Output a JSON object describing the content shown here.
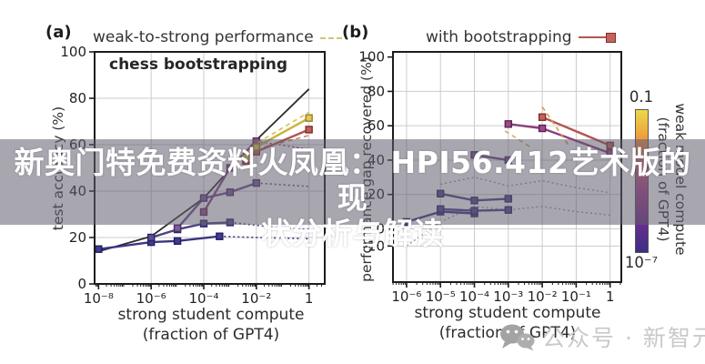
{
  "overlay": {
    "line1": "新奥门特免费资料火凤凰： HPI56.412艺术版的现",
    "line2": "状分析与解读"
  },
  "watermark": {
    "label": "公众号 · 新智元"
  },
  "colorbar": {
    "top_label": "0.1",
    "bottom_label": "10⁻⁷",
    "title_line1": "weak model compute",
    "title_line2": "(fraction of GPT4)",
    "gradient": [
      "#ecd94a",
      "#ec9c3c",
      "#d0607a",
      "#a13d8c",
      "#6a2d8f",
      "#3c2f85"
    ]
  },
  "chart_data": [
    {
      "type": "line",
      "panel_label": "(a)",
      "title": "chess bootstrapping",
      "legend_label": "weak-to-strong performance",
      "xlabel_line1": "strong student compute",
      "xlabel_line2": "(fraction of GPT4)",
      "ylabel": "test accuracy (%)",
      "xscale": "log",
      "xlim_log10": [
        -8.15,
        0.6
      ],
      "ylim": [
        0,
        100
      ],
      "xticks": [
        {
          "log10": -8,
          "label": "10⁻⁸",
          "grid": false
        },
        {
          "log10": -6,
          "label": "10⁻⁶",
          "grid": true
        },
        {
          "log10": -4,
          "label": "10⁻⁴",
          "grid": true
        },
        {
          "log10": -2,
          "label": "10⁻²",
          "grid": true
        },
        {
          "log10": 0,
          "label": "1",
          "grid": true
        }
      ],
      "yticks": [
        {
          "v": 0,
          "label": "0",
          "grid": false
        },
        {
          "v": 20,
          "label": "20",
          "grid": true
        },
        {
          "v": 40,
          "label": "40",
          "grid": true
        },
        {
          "v": 60,
          "label": "60",
          "grid": true
        },
        {
          "v": 80,
          "label": "80",
          "grid": true
        },
        {
          "v": 100,
          "label": "100",
          "grid": false
        }
      ],
      "series": [
        {
          "name": "strong ceiling",
          "color": "#2b2b2b",
          "dash": "solid",
          "width": 1.8,
          "marker": false,
          "points": [
            [
              -8,
              14
            ],
            [
              -6,
              20.5
            ],
            [
              -4,
              37
            ],
            [
              -2,
              62
            ],
            [
              0,
              84
            ]
          ]
        },
        {
          "name": "weak 1e-7 extension",
          "color": "#3b3583",
          "dash": "dotted",
          "width": 1.6,
          "marker": false,
          "points": [
            [
              -3.4,
              20.5
            ],
            [
              -2,
              20
            ],
            [
              0,
              19.5
            ]
          ]
        },
        {
          "name": "weak 1e-7 bootstrapped",
          "color": "#3b3583",
          "dash": "solid",
          "width": 2.4,
          "marker": true,
          "marker_fill": "#413b8e",
          "marker_stroke": "#221e5e",
          "points": [
            [
              -8,
              15
            ],
            [
              -6,
              18
            ],
            [
              -5,
              18.5
            ],
            [
              -3.4,
              20.5
            ]
          ]
        },
        {
          "name": "weak 1e-6 extension",
          "color": "#4d4383",
          "dash": "dotted",
          "width": 1.6,
          "marker": false,
          "points": [
            [
              -3,
              26.5
            ],
            [
              -1,
              24
            ],
            [
              0,
              23.5
            ]
          ]
        },
        {
          "name": "weak 1e-6 bootstrapped",
          "color": "#4d4383",
          "dash": "solid",
          "width": 2.4,
          "marker": true,
          "marker_fill": "#575091",
          "marker_stroke": "#2b2566",
          "points": [
            [
              -6,
              20
            ],
            [
              -5,
              23.5
            ],
            [
              -4,
              26
            ],
            [
              -3,
              26.5
            ]
          ]
        },
        {
          "name": "weak 1e-5 extension",
          "color": "#6f4f8c",
          "dash": "dotted",
          "width": 1.6,
          "marker": false,
          "points": [
            [
              -2,
              43.5
            ],
            [
              0,
              42
            ]
          ]
        },
        {
          "name": "weak 1e-5 bootstrapped",
          "color": "#6f4f8c",
          "dash": "solid",
          "width": 2.4,
          "marker": true,
          "marker_fill": "#7c5c9a",
          "marker_stroke": "#4a2f68",
          "points": [
            [
              -5,
              24
            ],
            [
              -4,
              37
            ],
            [
              -3,
              39.5
            ],
            [
              -2,
              43.5
            ]
          ]
        },
        {
          "name": "weak 1e-4 extension",
          "color": "#8d4585",
          "dash": "dotted",
          "width": 1.6,
          "marker": false,
          "points": [
            [
              -2,
              61.5
            ],
            [
              0,
              58
            ]
          ]
        },
        {
          "name": "weak 1e-4 bootstrapped",
          "color": "#8d4585",
          "dash": "solid",
          "width": 2.4,
          "marker": true,
          "marker_fill": "#9a5292",
          "marker_stroke": "#5f2759",
          "points": [
            [
              -4,
              31
            ],
            [
              -3,
              50
            ],
            [
              -2,
              61.5
            ]
          ]
        },
        {
          "name": "weak 1e-3 w2s dashed",
          "color": "#c98a74",
          "dash": "dashed",
          "width": 1.6,
          "marker": false,
          "points": [
            [
              -2,
              58
            ],
            [
              0,
              64
            ]
          ]
        },
        {
          "name": "weak 1e-3 bootstrapped",
          "color": "#b4534f",
          "dash": "solid",
          "width": 2.4,
          "marker": true,
          "marker_fill": "#bf6054",
          "marker_stroke": "#7c2e2a",
          "points": [
            [
              -2.4,
              53
            ],
            [
              -2,
              57
            ],
            [
              0,
              66.5
            ]
          ]
        },
        {
          "name": "weak 0.1 w2s dashed",
          "color": "#d8c04a",
          "dash": "dashed",
          "width": 1.6,
          "marker": false,
          "points": [
            [
              -2.4,
              56
            ],
            [
              -2,
              60.5
            ],
            [
              0,
              74
            ]
          ]
        },
        {
          "name": "weak 0.1 bootstrapped",
          "color": "#cbb23f",
          "dash": "solid",
          "width": 2.4,
          "marker": true,
          "marker_fill": "#e3ca52",
          "marker_stroke": "#94802a",
          "points": [
            [
              -2.4,
              54.5
            ],
            [
              -2,
              59
            ],
            [
              0,
              71.5
            ]
          ]
        }
      ]
    },
    {
      "type": "line",
      "panel_label": "(b)",
      "title": "",
      "legend_label": "with bootstrapping",
      "xlabel_line1": "strong student compute",
      "xlabel_line2": "(fraction of GPT4)",
      "ylabel": "performance gap recovered (%)",
      "xscale": "log",
      "xlim_log10": [
        -6.4,
        0.33
      ],
      "ylim": [
        -31,
        103
      ],
      "xticks": [
        {
          "log10": -6,
          "label": "10⁻⁶",
          "grid": true
        },
        {
          "log10": -5,
          "label": "10⁻⁵",
          "grid": true
        },
        {
          "log10": -4,
          "label": "10⁻⁴",
          "grid": true
        },
        {
          "log10": -3,
          "label": "10⁻³",
          "grid": true
        },
        {
          "log10": -2,
          "label": "10⁻²",
          "grid": true
        },
        {
          "log10": -1,
          "label": "10⁻¹",
          "grid": true
        },
        {
          "log10": 0,
          "label": "1",
          "grid": true
        }
      ],
      "yticks": [
        {
          "v": 100,
          "label": "100",
          "grid": false
        },
        {
          "v": 80,
          "label": "80",
          "grid": true
        },
        {
          "v": 60,
          "label": "60",
          "grid": true
        },
        {
          "v": 40,
          "label": "40",
          "grid": true
        },
        {
          "v": 20,
          "label": "20",
          "grid": true
        },
        {
          "v": 0,
          "label": "0",
          "grid": true
        },
        {
          "v": -10,
          "label": "-10",
          "grid": true
        }
      ],
      "series": [
        {
          "name": "baseline dashed low",
          "color": "#9b9b9b",
          "dash": "dotted",
          "width": 1.4,
          "marker": false,
          "points": [
            [
              -6,
              -10
            ],
            [
              -5,
              4
            ],
            [
              -4,
              13
            ],
            [
              -3,
              11
            ],
            [
              -2,
              13
            ],
            [
              -1,
              10
            ],
            [
              0,
              8
            ]
          ]
        },
        {
          "name": "baseline dashed mid",
          "color": "#9b9b9b",
          "dash": "dotted",
          "width": 1.4,
          "marker": false,
          "points": [
            [
              -5,
              26
            ],
            [
              -4,
              30
            ],
            [
              -3,
              25
            ],
            [
              -2,
              28
            ],
            [
              -1,
              24
            ],
            [
              0,
              21
            ]
          ]
        },
        {
          "name": "weak 1e-7 pgr",
          "color": "#3b3583",
          "dash": "solid",
          "width": 2.4,
          "marker": true,
          "marker_fill": "#413b8e",
          "marker_stroke": "#221e5e",
          "points": [
            [
              -6,
              4
            ],
            [
              -5,
              10
            ],
            [
              -4,
              9
            ]
          ]
        },
        {
          "name": "weak 1e-6 pgr",
          "color": "#443e86",
          "dash": "solid",
          "width": 2.4,
          "marker": true,
          "marker_fill": "#4e4790",
          "marker_stroke": "#282260",
          "points": [
            [
              -5,
              11.5
            ],
            [
              -4,
              10.5
            ],
            [
              -3,
              11
            ]
          ]
        },
        {
          "name": "weak 1e-5 pgr",
          "color": "#474083",
          "dash": "solid",
          "width": 2.4,
          "marker": true,
          "marker_fill": "#534b8e",
          "marker_stroke": "#2a2462",
          "points": [
            [
              -5,
              20.5
            ],
            [
              -4,
              16.5
            ],
            [
              -3,
              17.5
            ]
          ]
        },
        {
          "name": "weak 1e-4 pgr",
          "color": "#6f4283",
          "dash": "solid",
          "width": 2.4,
          "marker": true,
          "marker_fill": "#7b4e8f",
          "marker_stroke": "#48245c",
          "points": [
            [
              -4,
              43
            ],
            [
              -3,
              40
            ]
          ]
        },
        {
          "name": "weak 1e-3 pgr",
          "color": "#8d3f7f",
          "dash": "solid",
          "width": 2.4,
          "marker": true,
          "marker_fill": "#9a4b8b",
          "marker_stroke": "#5d2253",
          "points": [
            [
              -3,
              61
            ],
            [
              -2,
              58.5
            ],
            [
              0,
              44
            ]
          ]
        },
        {
          "name": "with bootstrapping",
          "color": "#b4534f",
          "dash": "solid",
          "width": 2.4,
          "marker": true,
          "marker_fill": "#c4635a",
          "marker_stroke": "#7c2e2a",
          "points": [
            [
              -2,
              65
            ],
            [
              0,
              48.5
            ]
          ]
        },
        {
          "name": "orange dashed high",
          "color": "#d89a4c",
          "dash": "dashed",
          "width": 1.6,
          "marker": false,
          "points": [
            [
              -2,
              71
            ],
            [
              -1.2,
              48
            ]
          ]
        },
        {
          "name": "orange dashed mid",
          "color": "#d8b05a",
          "dash": "dashed",
          "width": 1.6,
          "marker": false,
          "points": [
            [
              -3.1,
              57
            ],
            [
              -2.3,
              47
            ]
          ]
        }
      ]
    }
  ]
}
